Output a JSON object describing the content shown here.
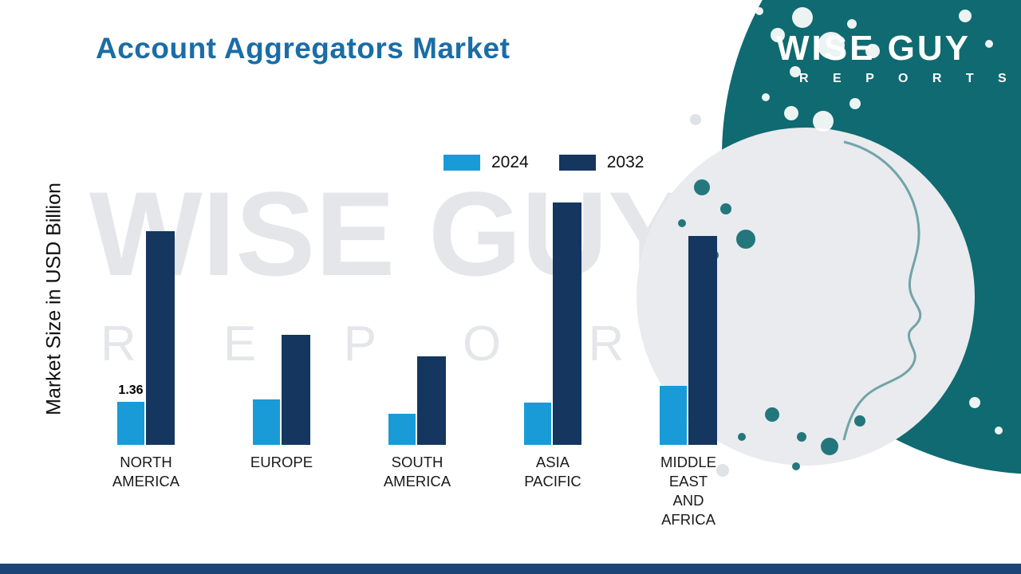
{
  "title": "Account Aggregators Market",
  "logo": {
    "name": "WISE GUY",
    "sub": "R E P O R T S"
  },
  "watermark": {
    "line1": "WISE GUY",
    "line2": "R E P O R T S"
  },
  "chart_data": {
    "type": "bar",
    "title": "Account Aggregators Market",
    "ylabel": "Market Size in USD Billion",
    "xlabel": "",
    "ylim": [
      0,
      7.7
    ],
    "grid": false,
    "legend_position": "top",
    "categories": [
      "NORTH AMERICA",
      "EUROPE",
      "SOUTH AMERICA",
      "ASIA PACIFIC",
      "MIDDLE EAST AND AFRICA"
    ],
    "category_lines": [
      [
        "NORTH",
        "AMERICA"
      ],
      [
        "EUROPE"
      ],
      [
        "SOUTH",
        "AMERICA"
      ],
      [
        "ASIA",
        "PACIFIC"
      ],
      [
        "MIDDLE",
        "EAST",
        "AND",
        "AFRICA"
      ]
    ],
    "series": [
      {
        "name": "2024",
        "color": "#199bd7",
        "values": [
          1.36,
          1.42,
          0.97,
          1.32,
          1.85
        ]
      },
      {
        "name": "2032",
        "color": "#14365f",
        "values": [
          6.7,
          3.45,
          2.78,
          7.6,
          6.55
        ]
      }
    ],
    "annotations": [
      {
        "category": 0,
        "series": 0,
        "text": "1.36"
      }
    ]
  },
  "colors": {
    "title": "#1a6da6",
    "teal": "#0f6a71",
    "teal_dark": "#0b555c",
    "gray_circle": "#e9ebee",
    "watermark": "#e4e6ea",
    "strip": "#1c4474",
    "text": "#1a1a1a"
  }
}
